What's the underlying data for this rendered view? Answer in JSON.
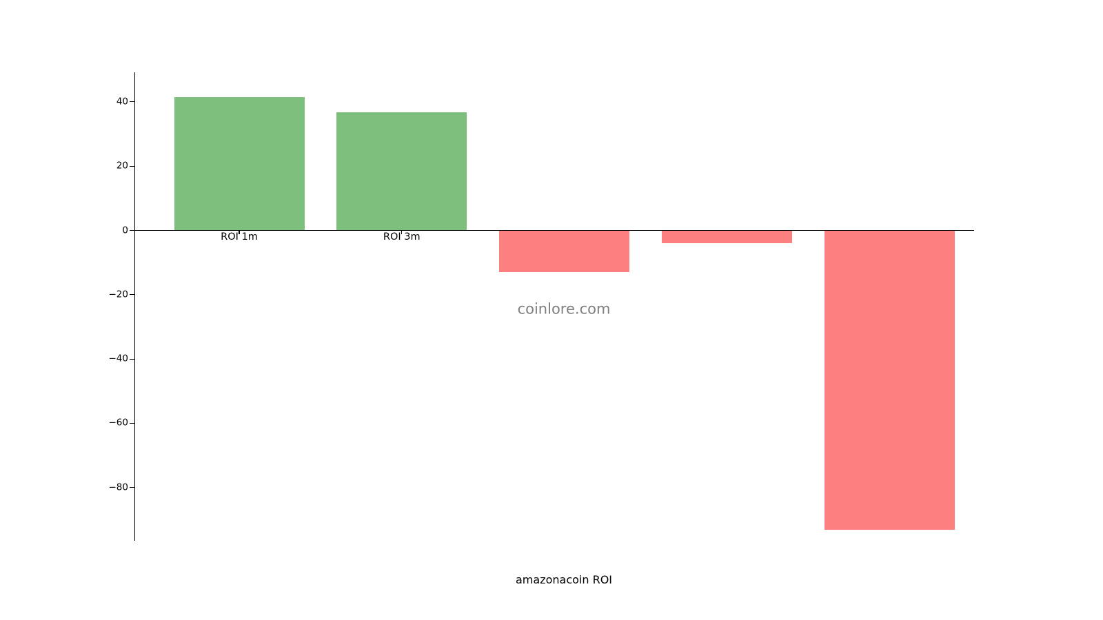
{
  "watermark": {
    "text": "coinlore.com",
    "color": "#7f7f7f"
  },
  "chart_data": {
    "type": "bar",
    "title": "",
    "xlabel": "amazonacoin ROI",
    "ylabel": "",
    "categories": [
      "ROI 1m",
      "ROI 3m",
      null,
      null,
      null
    ],
    "values": [
      41.5,
      36.8,
      -13.0,
      -4.0,
      -93.1
    ],
    "ytick_values": [
      40,
      20,
      0,
      -20,
      -40,
      -60,
      -80
    ],
    "ytick_labels": [
      "40",
      "20",
      "0",
      "−20",
      "−40",
      "−60",
      "−80"
    ],
    "ylim": [
      -96.6,
      49.2
    ],
    "grid": false,
    "legend": null,
    "colors": {
      "positive_bar": "#7dbf7d",
      "negative_bar": "#fc8080",
      "axis": "#000000",
      "tick_label": "#000000"
    }
  }
}
